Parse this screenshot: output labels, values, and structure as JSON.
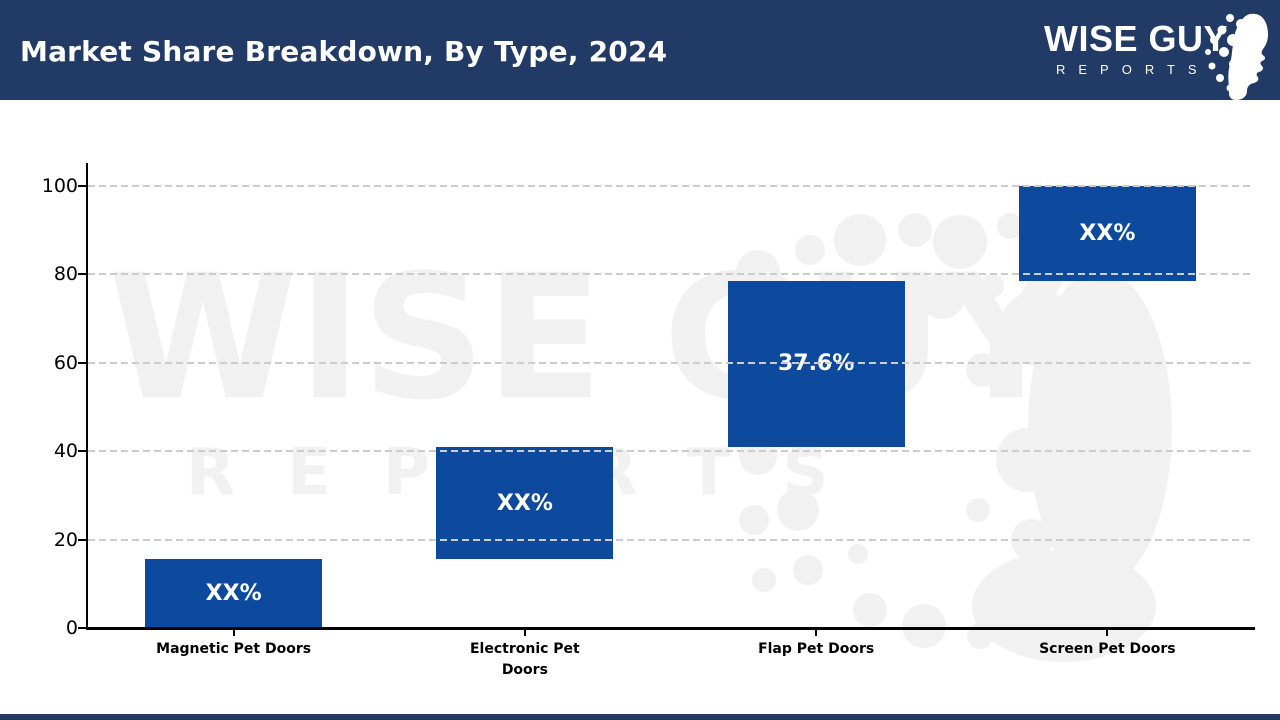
{
  "header": {
    "title": "Market Share Breakdown, By Type, 2024",
    "logo": {
      "name": "WISE GUY",
      "tagline": "REPORTS"
    }
  },
  "watermark": {
    "name": "WISE GUY",
    "tagline": "REPORTS"
  },
  "theme": {
    "header_bg": "#223a66",
    "bar_color": "#0d4a9e",
    "grid_color": "#cccccc",
    "axis_color": "#000000",
    "watermark_color": "#f1f1f1",
    "title_color": "#ffffff",
    "bar_label_color": "#ffffff"
  },
  "chart_data": {
    "type": "bar",
    "subtype": "waterfall-stacked-percentage",
    "title": "Market Share Breakdown, By Type, 2024",
    "xlabel": "",
    "ylabel": "",
    "ylim": [
      0,
      100
    ],
    "yticks": [
      0,
      20,
      40,
      60,
      80,
      100
    ],
    "grid": "horizontal-dashed",
    "legend": "none",
    "categories": [
      "Magnetic Pet Doors",
      "Electronic Pet\nDoors",
      "Flap Pet Doors",
      "Screen Pet Doors"
    ],
    "segments": [
      {
        "category": "Magnetic Pet Doors",
        "start": 0,
        "end": 15.5,
        "value_label": "XX%"
      },
      {
        "category": "Electronic Pet Doors",
        "start": 15.5,
        "end": 41.0,
        "value_label": "XX%"
      },
      {
        "category": "Flap Pet Doors",
        "start": 41.0,
        "end": 78.6,
        "value": 37.6,
        "value_label": "37.6%"
      },
      {
        "category": "Screen Pet Doors",
        "start": 78.6,
        "end": 100,
        "value_label": "XX%"
      }
    ]
  }
}
